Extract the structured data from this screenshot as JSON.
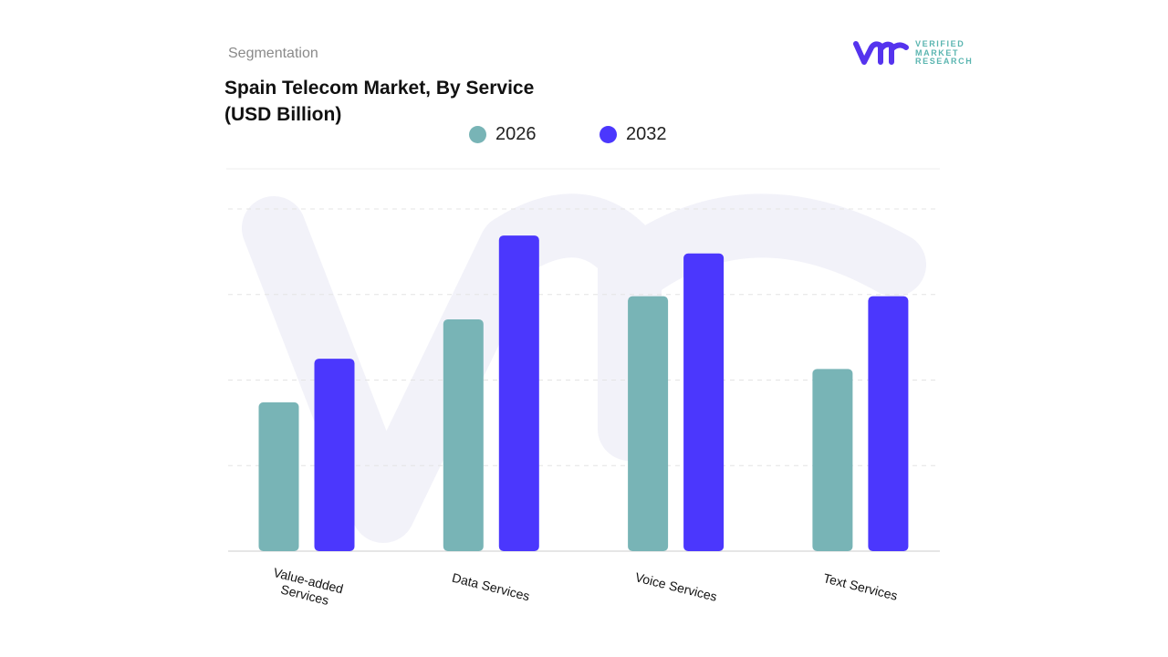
{
  "header": {
    "segment_label": "Segmentation",
    "title_line1": "Spain Telecom Market, By Service",
    "title_line2": "(USD Billion)"
  },
  "logo": {
    "line1": "VERIFIED",
    "line2": "MARKET",
    "line3": "RESEARCH"
  },
  "chart_data": {
    "type": "bar",
    "title": "Spain Telecom Market, By Service (USD Billion)",
    "categories": [
      "Value-added Services",
      "Data Services",
      "Voice Services",
      "Text Services"
    ],
    "series": [
      {
        "name": "2026",
        "color": "#78b4b6",
        "values": [
          1.74,
          2.71,
          2.98,
          2.13
        ]
      },
      {
        "name": "2032",
        "color": "#4b37fd",
        "values": [
          2.25,
          3.69,
          3.48,
          2.98
        ]
      }
    ],
    "ylim": [
      0,
      4
    ],
    "yticks_labeled": false,
    "grid": true,
    "legend": "top-center",
    "value_units": "relative (no axis values printed)"
  }
}
